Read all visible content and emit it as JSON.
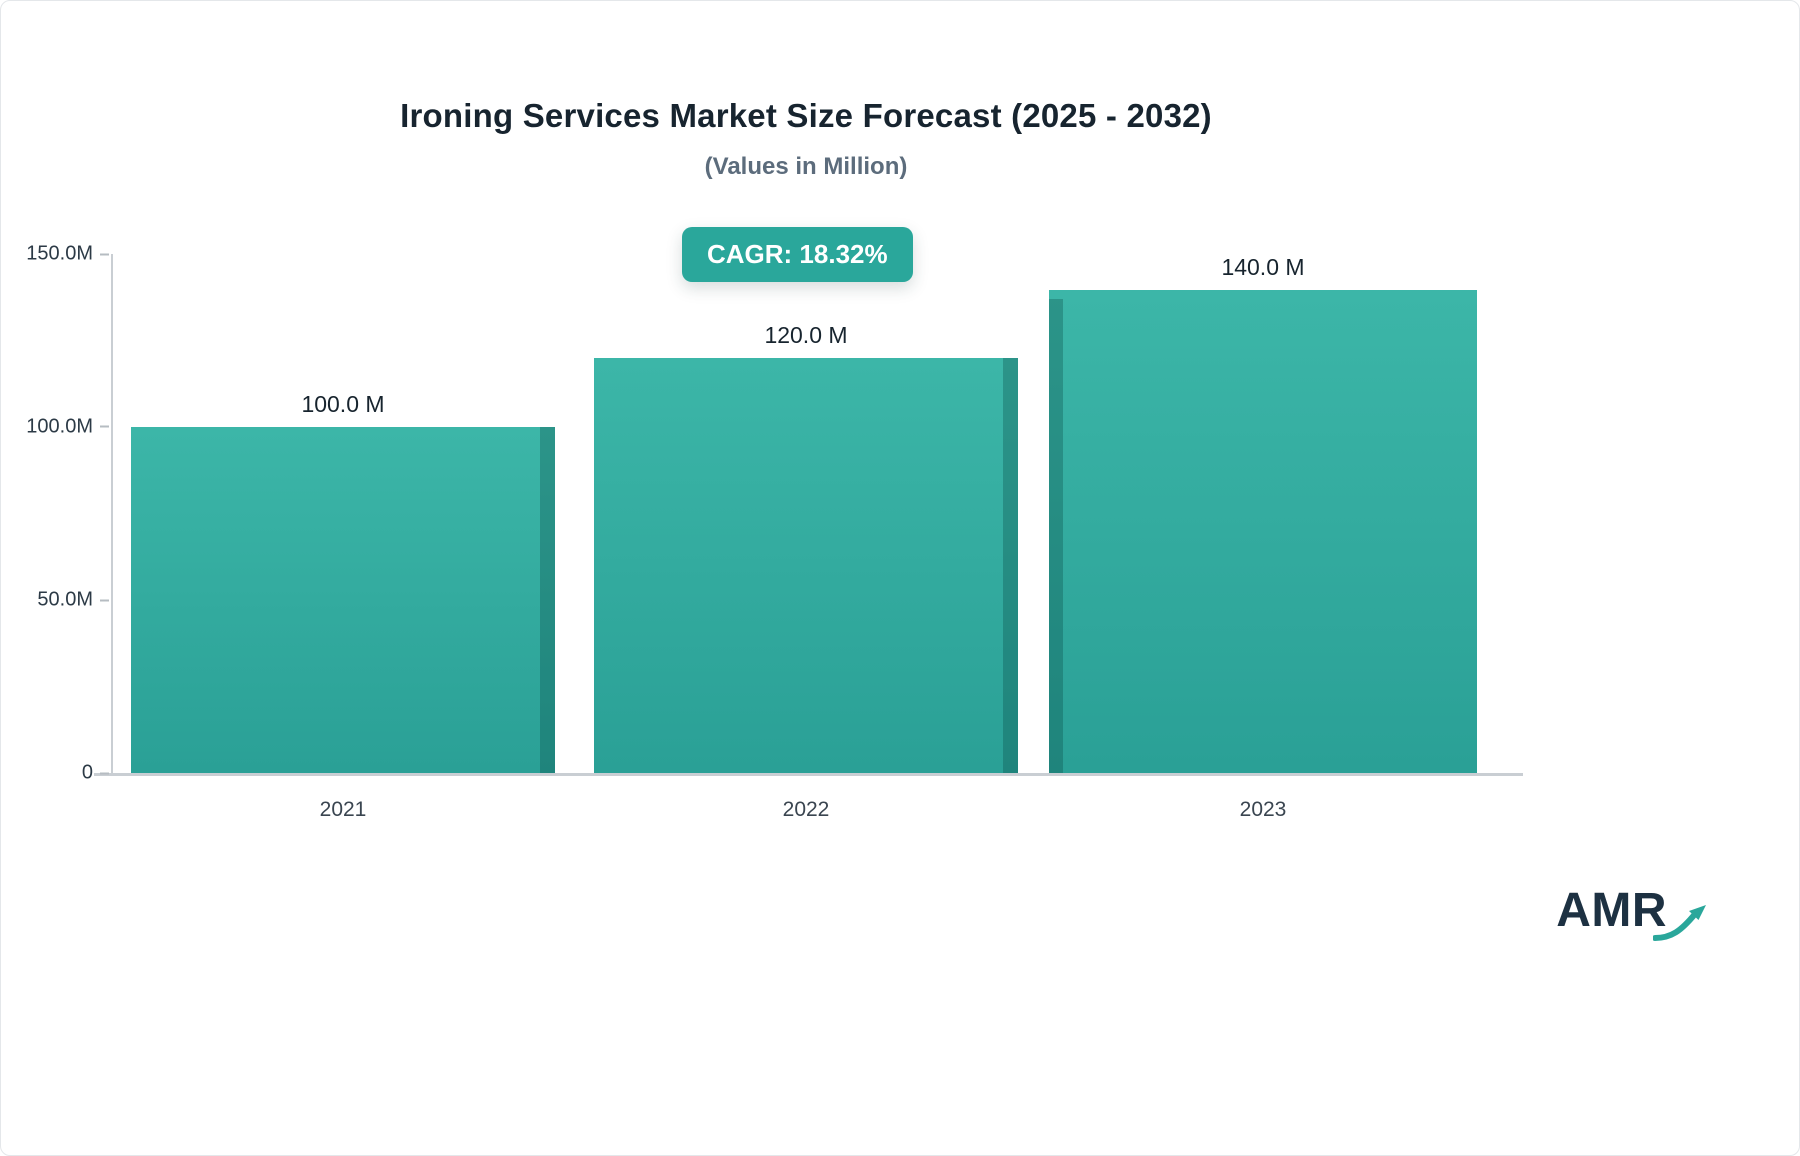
{
  "chart_data": {
    "type": "bar",
    "title": "Ironing Services Market Size Forecast (2025 - 2032)",
    "subtitle": "(Values in Million)",
    "badge_label": "CAGR: 18.32%",
    "categories": [
      "2021",
      "2022",
      "2023"
    ],
    "values": [
      100,
      120,
      140
    ],
    "value_labels": [
      "100.0 M",
      "120.0 M",
      "140.0 M"
    ],
    "yticks": [
      150,
      100,
      50,
      0
    ],
    "ytick_labels": [
      "150.0M",
      "100.0M",
      "50.0M",
      "0"
    ],
    "ylim": [
      0,
      150
    ],
    "grid": false,
    "legend": false,
    "colors": {
      "accent": "#2aa79b",
      "bar_top": "#3cb6a8",
      "bar_bottom": "#2aa096",
      "axis_line": "#c9ced3"
    }
  },
  "branding": {
    "logo_text": "AMR"
  }
}
